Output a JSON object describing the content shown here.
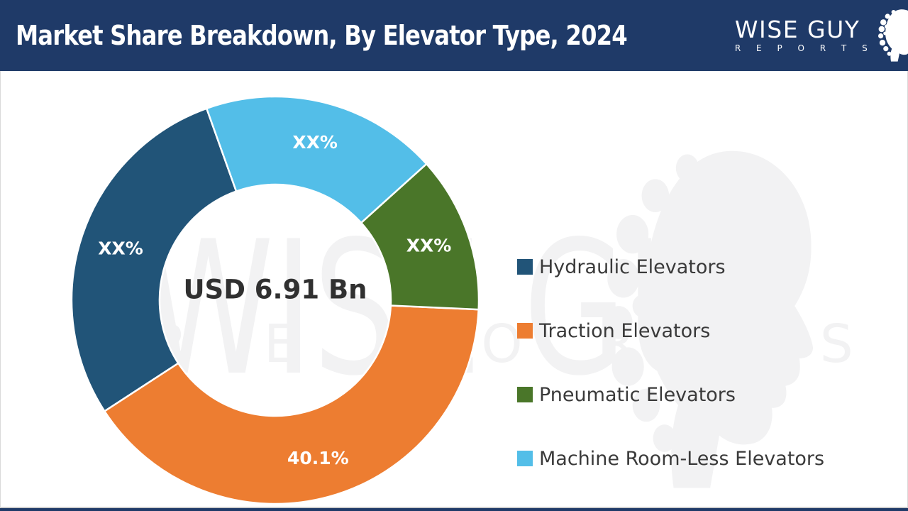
{
  "header": {
    "title": "Market Share Breakdown, By Elevator Type, 2024",
    "logo": {
      "line1": "WISE GUY",
      "line2": "R E P O R T S"
    }
  },
  "watermark": {
    "line1": "WISE GUY",
    "line2": "R E P O R T S"
  },
  "chart_data": {
    "type": "pie",
    "subtype": "donut",
    "title": "Market Share Breakdown, By Elevator Type, 2024",
    "center_label": "USD 6.91 Bn",
    "start_angle_deg": 109.7,
    "direction": "counterclockwise",
    "legend_position": "right",
    "segments": [
      {
        "name": "Hydraulic Elevators",
        "value_pct": 28.7,
        "label": "XX%",
        "color": "#215478"
      },
      {
        "name": "Traction Elevators",
        "value_pct": 40.1,
        "label": "40.1%",
        "color": "#ED7D31"
      },
      {
        "name": "Pneumatic Elevators",
        "value_pct": 12.4,
        "label": "XX%",
        "color": "#4A7629"
      },
      {
        "name": "Machine Room-Less Elevators",
        "value_pct": 18.8,
        "label": "XX%",
        "color": "#53BEE8"
      }
    ]
  },
  "colors": {
    "header_bg": "#1f3a68",
    "watermark": "#f2f2f3",
    "center_text": "#303030",
    "legend_text": "#3a3a3a"
  }
}
